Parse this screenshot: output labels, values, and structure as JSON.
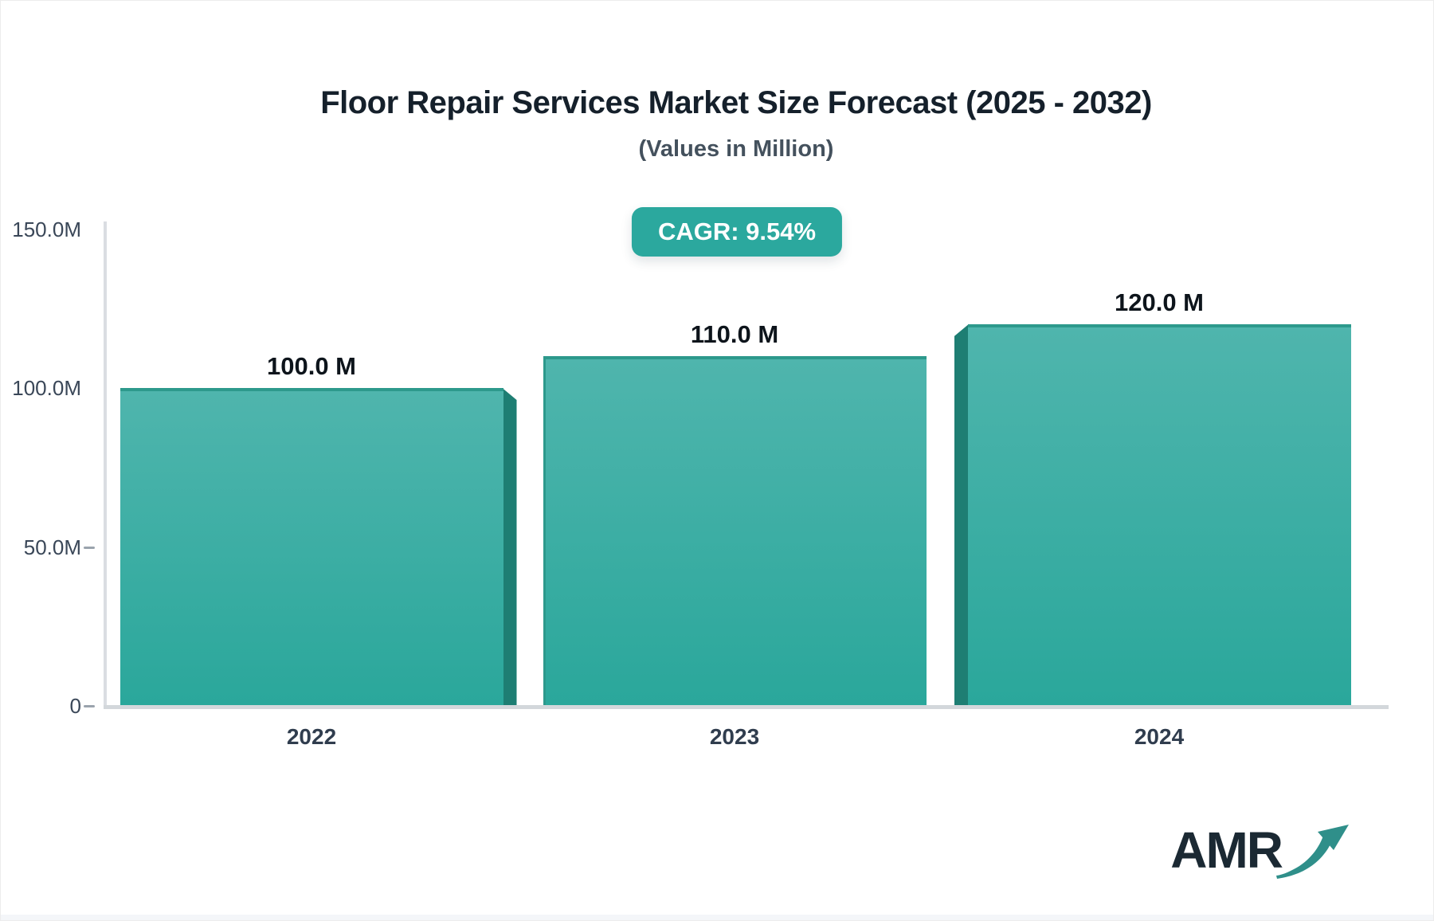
{
  "header": {
    "title": "Floor Repair Services Market Size Forecast (2025 - 2032)",
    "subtitle": "(Values in Million)"
  },
  "badge": {
    "label": "CAGR: 9.54%",
    "bg_color": "#2BA89E"
  },
  "chart_data": {
    "type": "bar",
    "title": "Floor Repair Services Market Size Forecast (2025 - 2032)",
    "subtitle": "(Values in Million)",
    "cagr": "9.54%",
    "categories": [
      "2022",
      "2023",
      "2024"
    ],
    "values": [
      100.0,
      110.0,
      120.0
    ],
    "value_labels": [
      "100.0 M",
      "110.0 M",
      "120.0 M"
    ],
    "unit": "Million",
    "ylim": [
      0,
      150
    ],
    "y_ticks": [
      {
        "label": "150.0M",
        "value": 150
      },
      {
        "label": "100.0M",
        "value": 100
      },
      {
        "label": "50.0M",
        "value": 50
      },
      {
        "label": "0",
        "value": 0
      }
    ],
    "grid": false,
    "legend_position": "none",
    "colors": {
      "bar_top": "#4FB5AD",
      "bar_bottom": "#2AA79B",
      "bar_side_shadow": "#1E7E73",
      "bar_edge": "#2D998C",
      "badge": "#2BA89E",
      "axis": "#d3d7db",
      "title_text": "#15202b",
      "label_text": "#0d141b"
    }
  },
  "watermark": {
    "text": "AMR"
  }
}
